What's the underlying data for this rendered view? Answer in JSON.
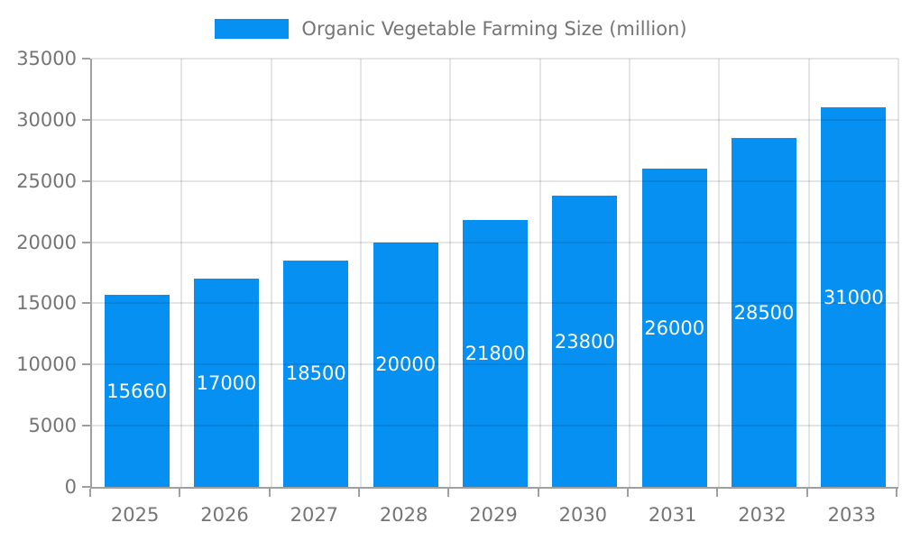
{
  "chart_data": {
    "type": "bar",
    "title": "Organic Vegetable Farming Size (million)",
    "categories": [
      "2025",
      "2026",
      "2027",
      "2028",
      "2029",
      "2030",
      "2031",
      "2032",
      "2033"
    ],
    "values": [
      15660,
      17000,
      18500,
      20000,
      21800,
      23800,
      26000,
      28500,
      31000
    ],
    "xlabel": "",
    "ylabel": "",
    "ylim": [
      0,
      35000
    ],
    "yticks": [
      0,
      5000,
      10000,
      15000,
      20000,
      25000,
      30000,
      35000
    ],
    "grid": true,
    "gridlines_over_bars": true,
    "bar_value_labels": "centered-white",
    "legend_position": "top-center",
    "colors": {
      "bar": "#0590f2",
      "bar_label": "#ffffff",
      "axis": "#a0a0a0",
      "gridline": "rgba(0,0,0,0.10)",
      "tick_text": "#757575",
      "background": "#ffffff"
    }
  }
}
